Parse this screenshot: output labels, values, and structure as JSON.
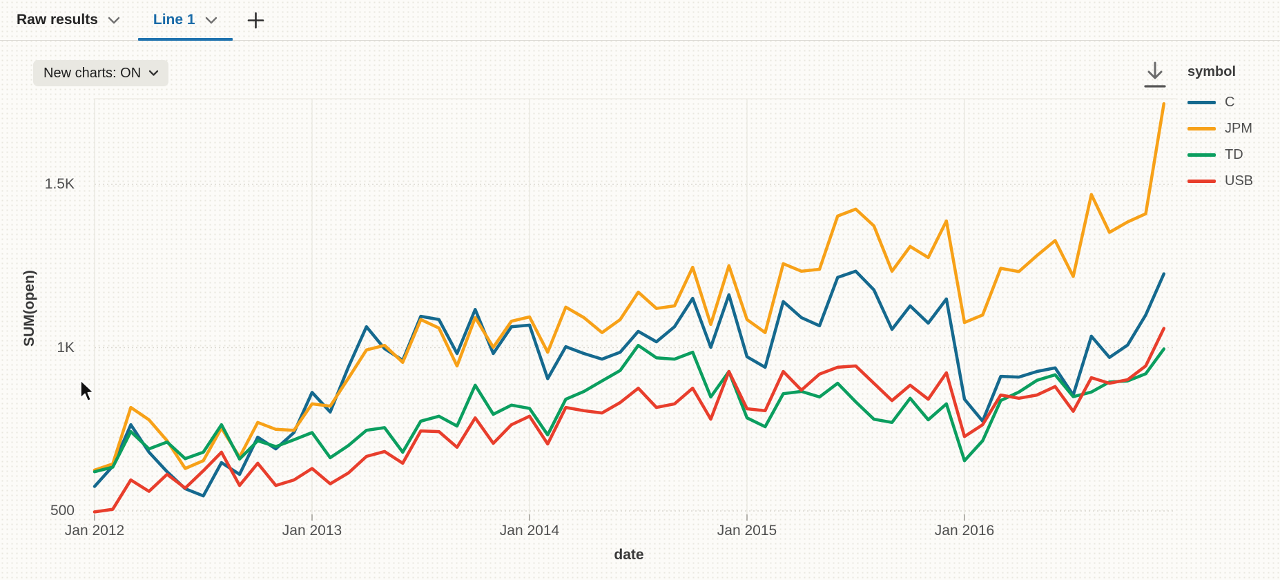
{
  "tab_bar": {
    "tabs": [
      {
        "label": "Raw results",
        "active": false
      },
      {
        "label": "Line 1",
        "active": true
      }
    ]
  },
  "controls": {
    "new_charts_label": "New charts: ON"
  },
  "icons": {
    "tab_dropdown": "chevron-down-icon",
    "add_tab": "plus-icon",
    "export": "download-icon"
  },
  "colors": {
    "active_tab_blue": "#1a6ba8",
    "tab_underline": "#1f72ae",
    "series_c": "#15698e",
    "series_jpm": "#f7a118",
    "series_td": "#0b9e5f",
    "series_usb": "#e83e2c"
  },
  "chart_data": {
    "type": "line",
    "title": "",
    "xlabel": "date",
    "ylabel": "SUM(open)",
    "legend_title": "symbol",
    "legend_position": "right",
    "grid": true,
    "x_unit": "month",
    "x_start": "Jan 2012",
    "x_end": "Dec 2016",
    "x_count": 60,
    "ylim": [
      489,
      1836
    ],
    "x_ticks": [
      {
        "label": "Jan 2012",
        "month": 0
      },
      {
        "label": "Jan 2013",
        "month": 12
      },
      {
        "label": "Jan 2014",
        "month": 24
      },
      {
        "label": "Jan 2015",
        "month": 36
      },
      {
        "label": "Jan 2016",
        "month": 48
      }
    ],
    "y_ticks": [
      {
        "label": "500",
        "value": 500
      },
      {
        "label": "1K",
        "value": 1000
      },
      {
        "label": "1.5K",
        "value": 1500
      }
    ],
    "series": [
      {
        "name": "C",
        "color": "#15698e",
        "values": [
          575,
          637,
          764,
          680,
          620,
          568,
          546,
          648,
          612,
          726,
          690,
          740,
          863,
          803,
          940,
          1064,
          997,
          961,
          1096,
          1086,
          982,
          1117,
          982,
          1064,
          1069,
          905,
          1003,
          982,
          965,
          986,
          1050,
          1018,
          1064,
          1151,
          1001,
          1162,
          972,
          940,
          1141,
          1092,
          1067,
          1215,
          1234,
          1177,
          1056,
          1128,
          1075,
          1149,
          842,
          775,
          912,
          910,
          927,
          938,
          855,
          1035,
          970,
          1008,
          1100,
          1226
        ]
      },
      {
        "name": "JPM",
        "color": "#f7a118",
        "values": [
          625,
          644,
          817,
          779,
          715,
          630,
          654,
          754,
          665,
          771,
          750,
          747,
          828,
          821,
          906,
          993,
          1007,
          955,
          1086,
          1060,
          944,
          1092,
          1001,
          1081,
          1094,
          986,
          1124,
          1092,
          1046,
          1086,
          1170,
          1120,
          1128,
          1246,
          1071,
          1251,
          1086,
          1046,
          1257,
          1234,
          1240,
          1403,
          1424,
          1373,
          1234,
          1310,
          1276,
          1388,
          1077,
          1100,
          1243,
          1233,
          1282,
          1328,
          1218,
          1469,
          1353,
          1385,
          1410,
          1747
        ]
      },
      {
        "name": "TD",
        "color": "#0b9e5f",
        "values": [
          620,
          634,
          743,
          690,
          711,
          660,
          680,
          764,
          659,
          715,
          697,
          718,
          740,
          663,
          700,
          747,
          755,
          680,
          775,
          790,
          760,
          885,
          796,
          824,
          814,
          733,
          842,
          866,
          898,
          930,
          1007,
          969,
          965,
          986,
          849,
          927,
          785,
          758,
          859,
          866,
          849,
          891,
          834,
          781,
          771,
          845,
          779,
          828,
          654,
          715,
          838,
          864,
          900,
          917,
          850,
          864,
          895,
          898,
          920,
          996
        ]
      },
      {
        "name": "USB",
        "color": "#e83e2c",
        "values": [
          497,
          505,
          595,
          560,
          612,
          570,
          623,
          680,
          578,
          646,
          578,
          595,
          630,
          583,
          616,
          667,
          682,
          646,
          745,
          743,
          695,
          785,
          707,
          764,
          790,
          705,
          817,
          807,
          800,
          832,
          876,
          817,
          828,
          876,
          781,
          927,
          813,
          807,
          927,
          870,
          919,
          940,
          944,
          891,
          838,
          885,
          842,
          923,
          728,
          764,
          855,
          845,
          855,
          881,
          805,
          908,
          891,
          902,
          944,
          1059
        ]
      }
    ]
  }
}
